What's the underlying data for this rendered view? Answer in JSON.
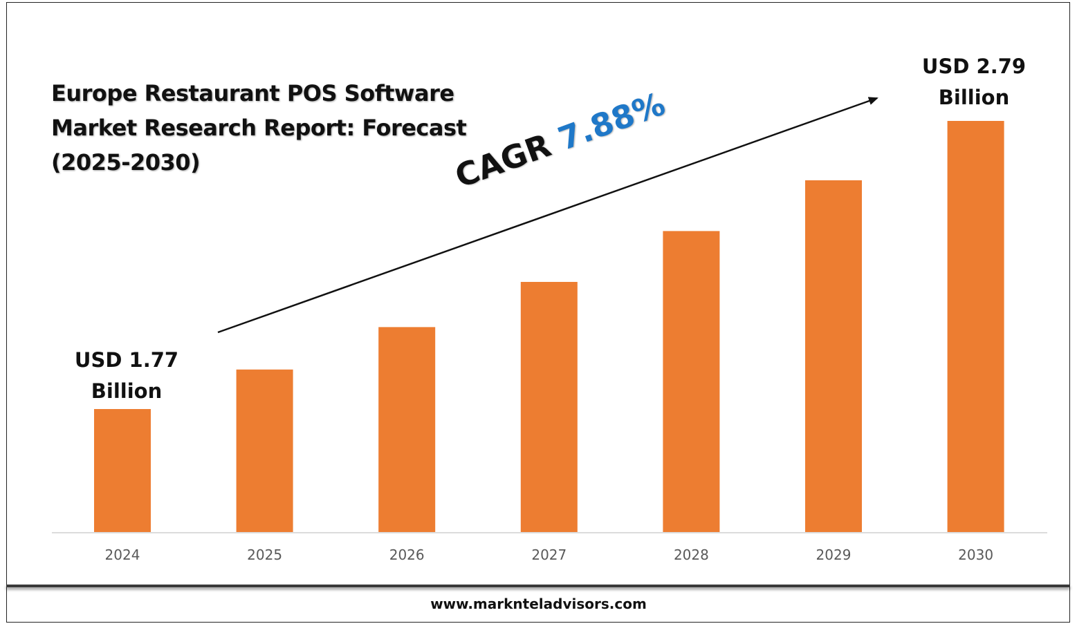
{
  "title": "Europe Restaurant POS Software Market Research Report: Forecast (2025-2030)",
  "cagr": {
    "label": "CAGR",
    "value": "7.88%"
  },
  "callouts": {
    "start": {
      "line1": "USD 1.77",
      "line2": "Billion"
    },
    "end": {
      "line1": "USD 2.79",
      "line2": "Billion"
    }
  },
  "footer": "www.marknteladvisors.com",
  "colors": {
    "bar": "#ed7d31",
    "cagr_value": "#1f78c8",
    "arrow": "#111111"
  },
  "chart_data": {
    "type": "bar",
    "title": "Europe Restaurant POS Software Market Research Report: Forecast (2025-2030)",
    "categories": [
      "2024",
      "2025",
      "2026",
      "2027",
      "2028",
      "2029",
      "2030"
    ],
    "values": [
      1.77,
      1.91,
      2.06,
      2.22,
      2.4,
      2.58,
      2.79
    ],
    "unit": "USD Billion",
    "ylim": [
      0,
      3.2
    ],
    "grid": false,
    "legend": "none"
  }
}
